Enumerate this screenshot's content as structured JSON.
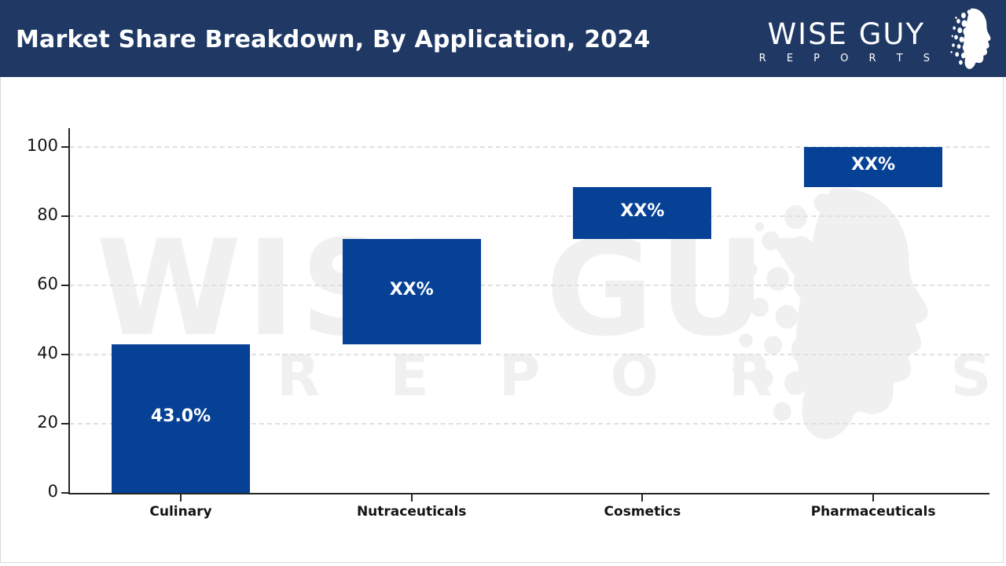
{
  "header": {
    "title": "Market Share Breakdown, By Application, 2024",
    "logo_line1": "WISE GUY",
    "logo_line2": "R E P O R T S"
  },
  "watermark": {
    "line1": "WISE GUY",
    "line2": "R E P O R T S"
  },
  "chart_data": {
    "type": "bar",
    "variant": "stacked_waterfall_percent",
    "title": "Market Share Breakdown, By Application, 2024",
    "categories": [
      "Culinary",
      "Nutraceuticals",
      "Cosmetics",
      "Pharmaceuticals"
    ],
    "segments": [
      {
        "category": "Culinary",
        "start": 0,
        "end": 43,
        "value": 43.0,
        "label": "43.0%"
      },
      {
        "category": "Nutraceuticals",
        "start": 43,
        "end": 73.5,
        "value": 30.5,
        "label": "XX%"
      },
      {
        "category": "Cosmetics",
        "start": 73.5,
        "end": 88.5,
        "value": 15.0,
        "label": "XX%"
      },
      {
        "category": "Pharmaceuticals",
        "start": 88.5,
        "end": 100,
        "value": 11.5,
        "label": "XX%"
      }
    ],
    "y_ticks": [
      0,
      20,
      40,
      60,
      80,
      100
    ],
    "ylim": [
      0,
      105
    ],
    "xlabel": "",
    "ylabel": "",
    "grid": "horizontal dashed",
    "legend": "none"
  },
  "colors": {
    "header_bg": "#1f3864",
    "bar": "#064195",
    "bar_label": "#ffffff",
    "grid": "#e0e0e0",
    "axis": "#262626",
    "frame_border": "#d9d9d9",
    "watermark": "#f0f0f0",
    "title_text": "#ffffff",
    "tick_text": "#141414"
  }
}
